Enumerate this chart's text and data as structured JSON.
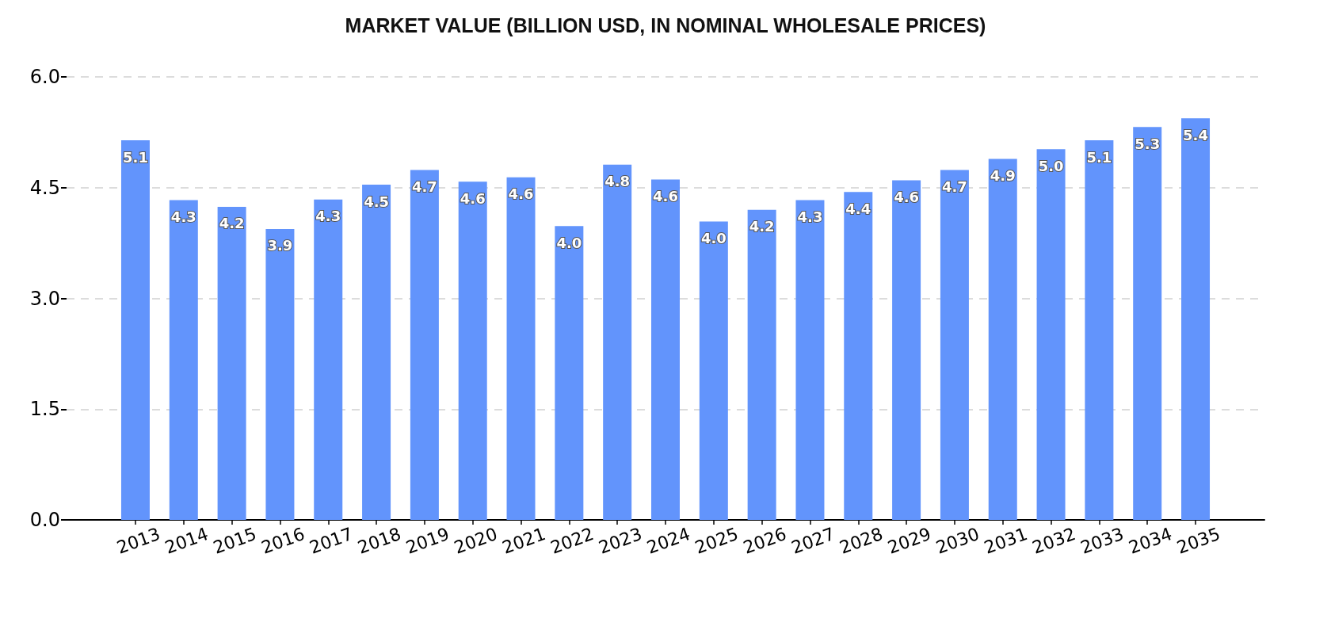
{
  "chart_data": {
    "type": "bar",
    "title": "MARKET VALUE (BILLION USD, IN NOMINAL WHOLESALE PRICES)",
    "categories": [
      "2013",
      "2014",
      "2015",
      "2016",
      "2017",
      "2018",
      "2019",
      "2020",
      "2021",
      "2022",
      "2023",
      "2024",
      "2025",
      "2026",
      "2027",
      "2028",
      "2029",
      "2030",
      "2031",
      "2032",
      "2033",
      "2034",
      "2035"
    ],
    "values": [
      5.14,
      4.33,
      4.24,
      3.94,
      4.34,
      4.54,
      4.74,
      4.58,
      4.64,
      3.98,
      4.81,
      4.61,
      4.04,
      4.2,
      4.33,
      4.44,
      4.6,
      4.74,
      4.89,
      5.02,
      5.14,
      5.32,
      5.44
    ],
    "value_labels": [
      "5.1",
      "4.3",
      "4.2",
      "3.9",
      "4.3",
      "4.5",
      "4.7",
      "4.6",
      "4.6",
      "4.0",
      "4.8",
      "4.6",
      "4.0",
      "4.2",
      "4.3",
      "4.4",
      "4.6",
      "4.7",
      "4.9",
      "5.0",
      "5.1",
      "5.3",
      "5.4"
    ],
    "color": "#6294fc",
    "ylim": [
      0,
      6
    ],
    "yticks": [
      {
        "value": 0,
        "label": "0.0"
      },
      {
        "value": 1.5,
        "label": "1.5"
      },
      {
        "value": 3,
        "label": "3.0"
      },
      {
        "value": 4.5,
        "label": "4.5"
      },
      {
        "value": 6,
        "label": "6.0"
      }
    ],
    "grid": "y"
  }
}
